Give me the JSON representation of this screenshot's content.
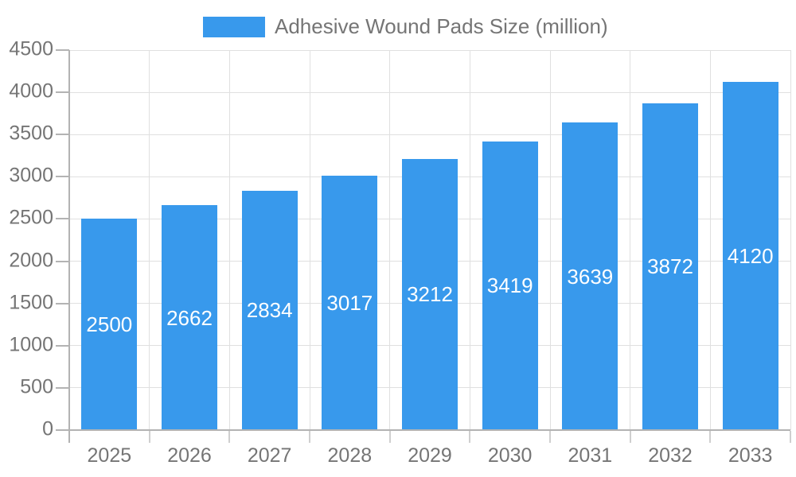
{
  "chart_data": {
    "type": "bar",
    "categories": [
      "2025",
      "2026",
      "2027",
      "2028",
      "2029",
      "2030",
      "2031",
      "2032",
      "2033"
    ],
    "series": [
      {
        "name": "Adhesive Wound Pads Size (million)",
        "values": [
          2500,
          2662,
          2834,
          3017,
          3212,
          3419,
          3639,
          3872,
          4120
        ]
      }
    ],
    "title": "",
    "xlabel": "",
    "ylabel": "",
    "ylim": [
      0,
      4500
    ],
    "yticks": [
      0,
      500,
      1000,
      1500,
      2000,
      2500,
      3000,
      3500,
      4000,
      4500
    ],
    "grid": true,
    "legend_position": "top-center",
    "value_labels": "inside-center",
    "colors": {
      "bar": "#3899ec",
      "bar_label": "#ffffff",
      "axis_text": "#757575",
      "grid_line": "#e0e0e0",
      "axis_line": "#b3b3b3",
      "background": "#ffffff"
    }
  }
}
